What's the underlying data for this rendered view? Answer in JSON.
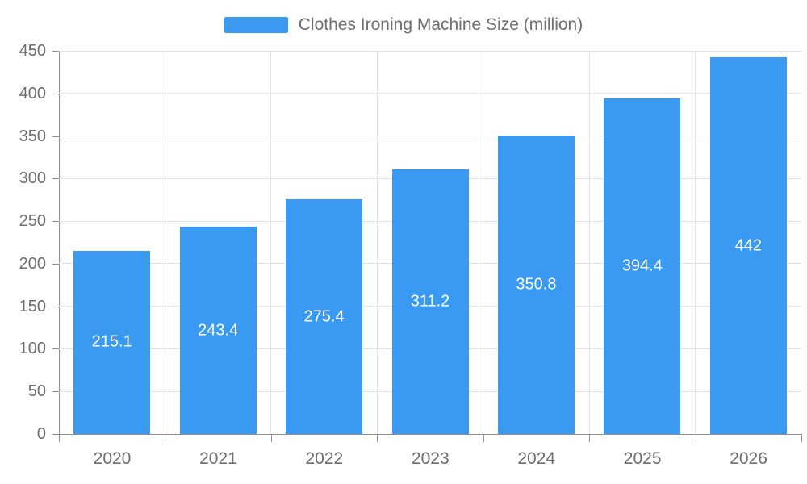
{
  "legend": {
    "label": "Clothes Ironing Machine Size (million)"
  },
  "colors": {
    "bar": "#3a99f0",
    "grid": "#e3e3e3",
    "axis": "#8f8f8f",
    "tick_label": "#6e6e6e",
    "bar_label": "#ffffff"
  },
  "chart_data": {
    "type": "bar",
    "title": "Clothes Ironing Machine Size (million)",
    "series_name": "Clothes Ironing Machine Size (million)",
    "categories": [
      "2020",
      "2021",
      "2022",
      "2023",
      "2024",
      "2025",
      "2026"
    ],
    "values": [
      215.1,
      243.4,
      275.4,
      311.2,
      350.8,
      394.4,
      442
    ],
    "value_labels": [
      "215.1",
      "243.4",
      "275.4",
      "311.2",
      "350.8",
      "394.4",
      "442"
    ],
    "xlabel": "",
    "ylabel": "",
    "ylim": [
      0,
      450
    ],
    "ytick_step": 50,
    "ytick_labels": [
      "0",
      "50",
      "100",
      "150",
      "200",
      "250",
      "300",
      "350",
      "400",
      "450"
    ],
    "grid": true,
    "legend_position": "top-center",
    "data_label_position": "inside-center",
    "data_label_color": "#ffffff"
  }
}
